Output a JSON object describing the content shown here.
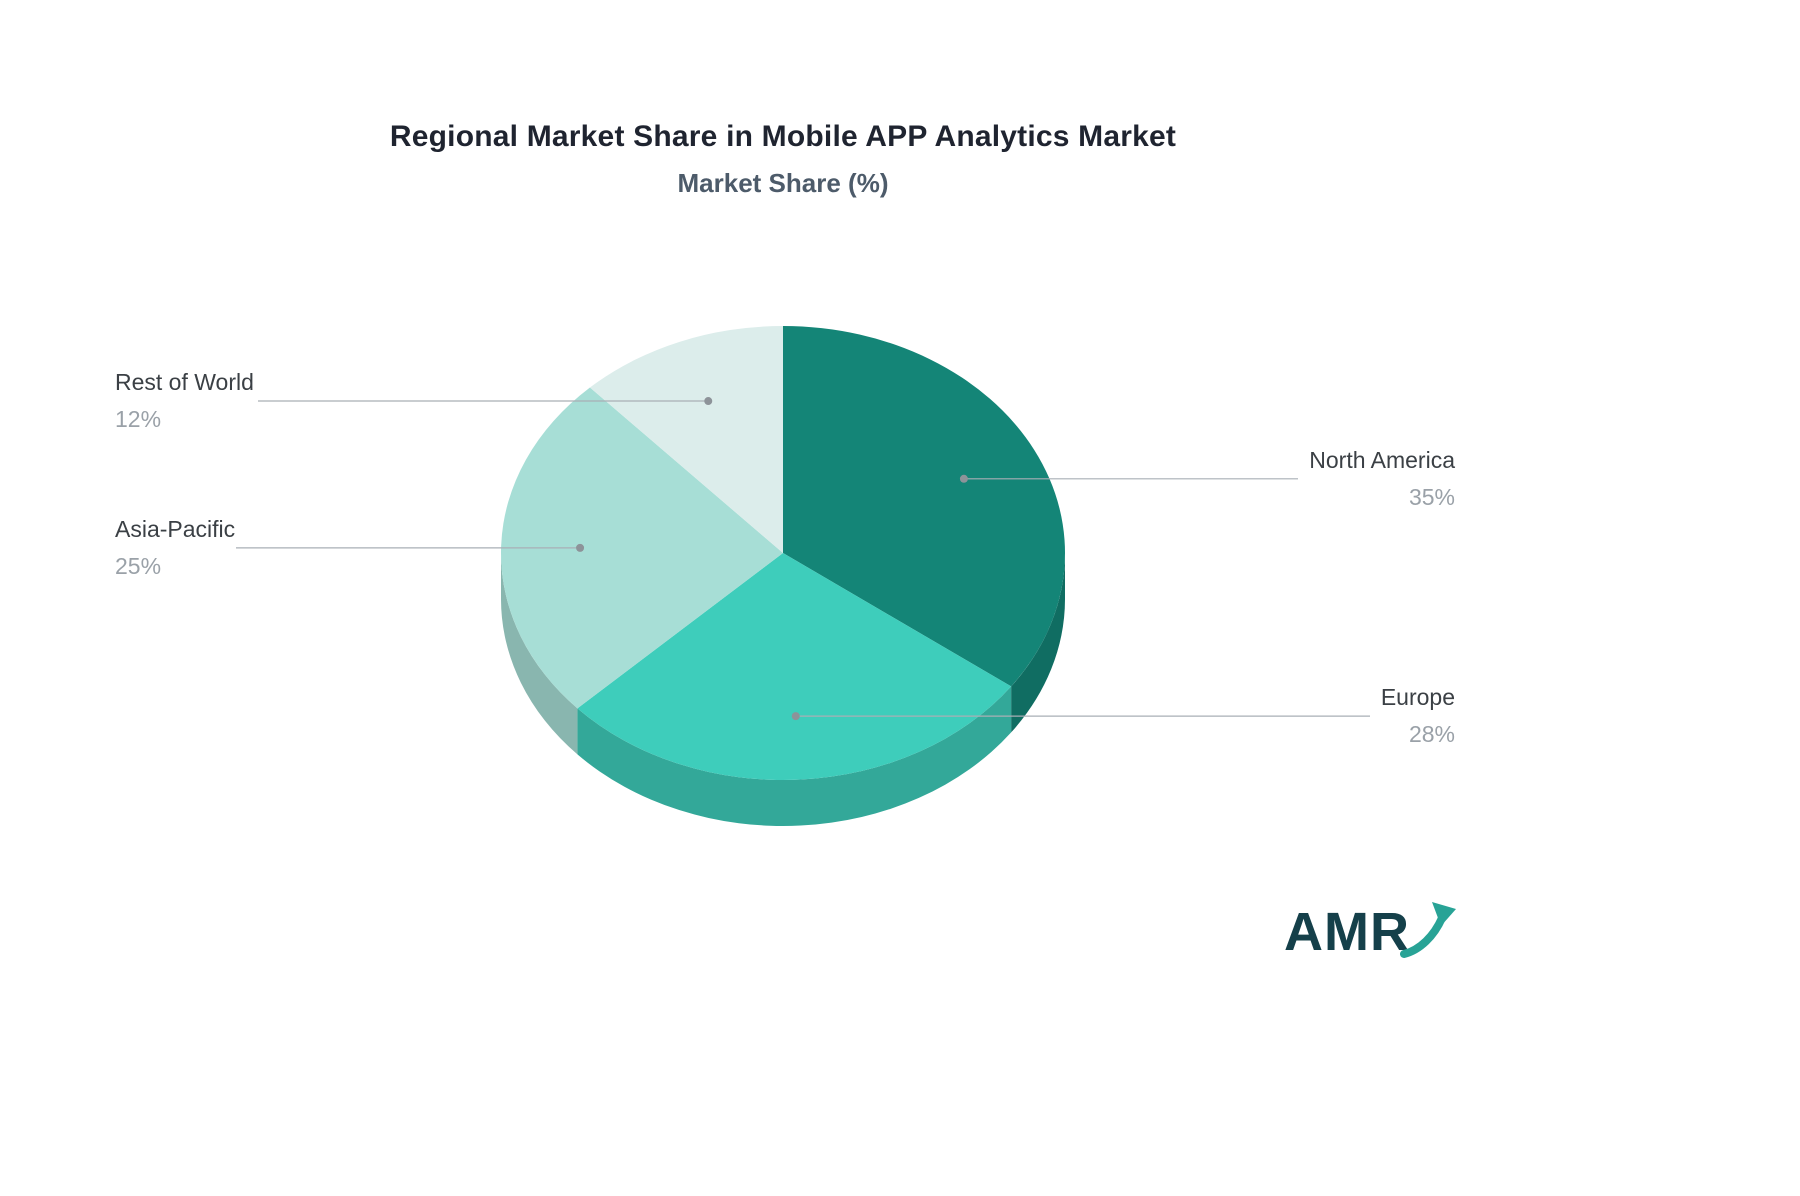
{
  "header": {
    "title": "Regional Market Share in Mobile APP Analytics Market",
    "subtitle": "Market Share (%)"
  },
  "chart_data": {
    "type": "pie",
    "title": "Regional Market Share in Mobile APP Analytics Market",
    "subtitle": "Market Share (%)",
    "unit": "%",
    "style": "3d-pie",
    "start_angle_deg": 0,
    "direction": "clockwise",
    "legend_position": "none",
    "labels": "leader-lines",
    "slices": [
      {
        "label": "North America",
        "value": 35,
        "display": "35%",
        "color": "#148577"
      },
      {
        "label": "Europe",
        "value": 28,
        "display": "28%",
        "color": "#3ecdbb"
      },
      {
        "label": "Asia-Pacific",
        "value": 25,
        "display": "25%",
        "color": "#a7ded6"
      },
      {
        "label": "Rest of World",
        "value": 12,
        "display": "12%",
        "color": "#dcedeb"
      }
    ]
  },
  "branding": {
    "logo_text": "AMR",
    "logo_color": "#15404a",
    "arrow_color": "#28a396"
  }
}
